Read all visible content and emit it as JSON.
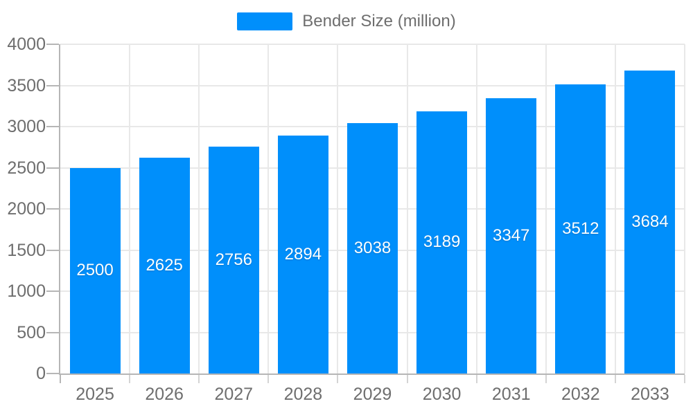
{
  "page": {
    "background": "#ffffff"
  },
  "legend": {
    "label": "Bender Size (million)",
    "swatch_color": "#008FFB",
    "position": "top-center"
  },
  "chart_data": {
    "type": "bar",
    "title": "",
    "xlabel": "",
    "ylabel": "",
    "categories": [
      "2025",
      "2026",
      "2027",
      "2028",
      "2029",
      "2030",
      "2031",
      "2032",
      "2033"
    ],
    "series": [
      {
        "name": "Bender Size (million)",
        "values": [
          2500,
          2625,
          2756,
          2894,
          3038,
          3189,
          3347,
          3512,
          3684
        ]
      }
    ],
    "value_labels_shown": true,
    "value_label_position": "center-of-bar",
    "ylim": [
      0,
      4000
    ],
    "yticks": [
      0,
      500,
      1000,
      1500,
      2000,
      2500,
      3000,
      3500,
      4000
    ],
    "grid": true,
    "legend_position": "top",
    "colors": {
      "bar": "#008FFB",
      "value_label": "#ffffff",
      "axis_text": "#6e6e6e",
      "grid_line": "#e8e8e8",
      "axis_line": "#b6b6b6",
      "boundary_tick": "#d4d4d4"
    }
  }
}
